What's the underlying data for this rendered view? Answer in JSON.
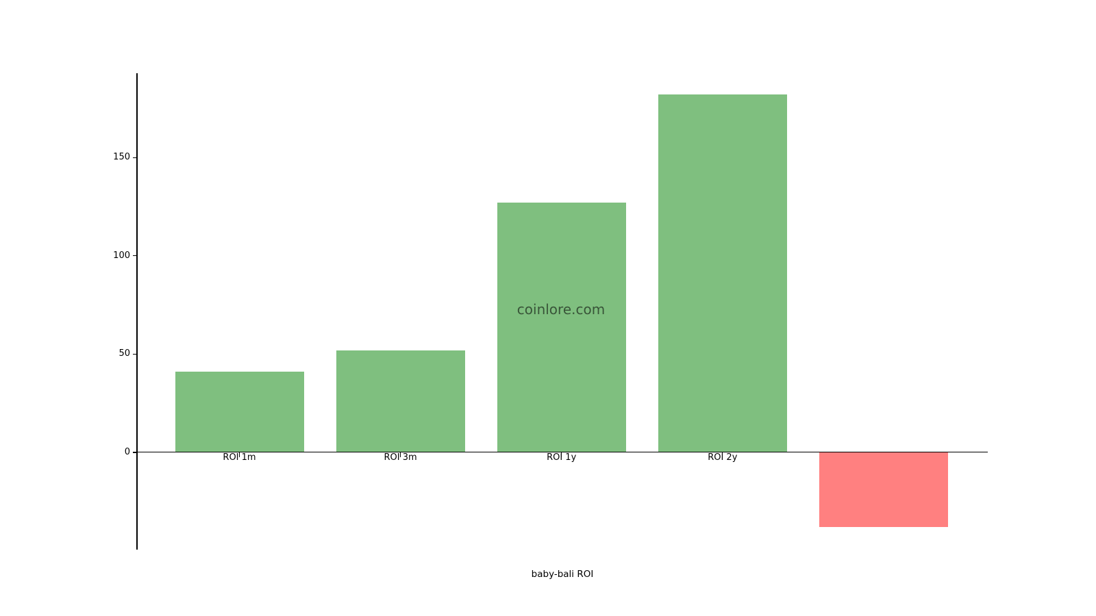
{
  "chart_data": {
    "type": "bar",
    "title": "baby-bali ROI",
    "title_position": "bottom",
    "categories": [
      "ROI 1m",
      "ROI 3m",
      "ROI 1y",
      "ROI 2y",
      ""
    ],
    "values": [
      41,
      52,
      127,
      182,
      -38
    ],
    "yticks": [
      "0",
      "50",
      "100",
      "150"
    ],
    "ylim": [
      -49,
      193
    ],
    "grid": false,
    "legend": false,
    "bar_color_positive": "#7FBF7F",
    "bar_color_negative": "#FF8080",
    "axis_color": "#000000",
    "watermark": "coinlore.com"
  }
}
